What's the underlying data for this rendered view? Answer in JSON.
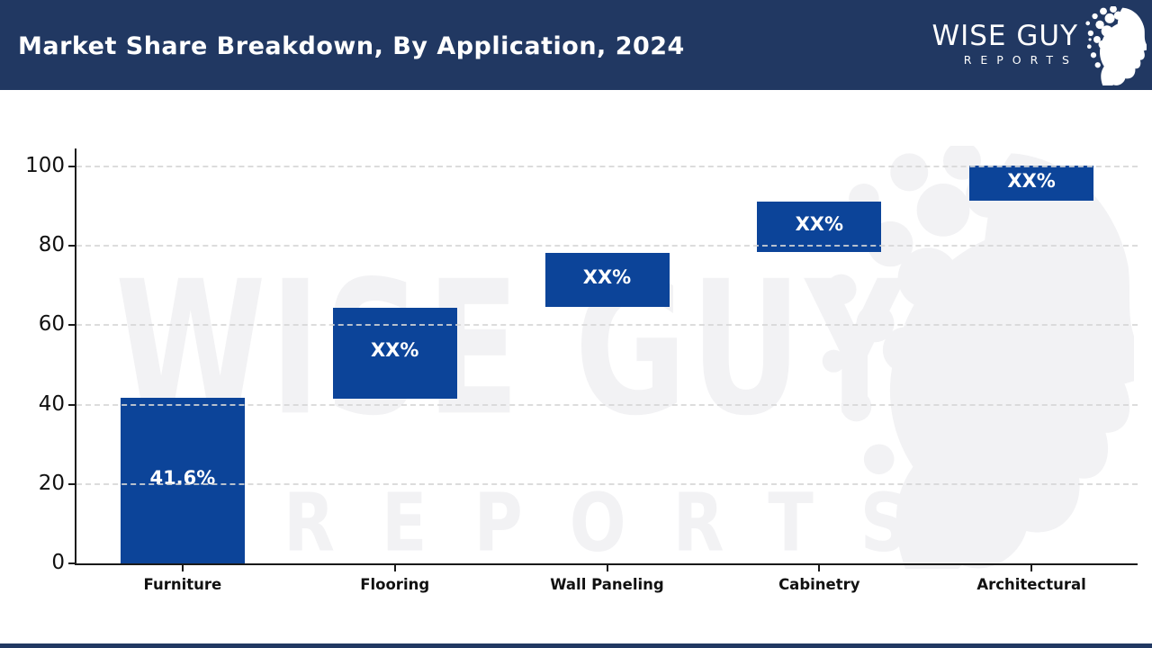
{
  "header": {
    "title": "Market Share Breakdown, By Application, 2024",
    "logo": {
      "line1": "WISE GUY",
      "line2": "REPORTS"
    }
  },
  "watermark": {
    "line1": "WISE GUY",
    "line2": "REPORTS"
  },
  "colors": {
    "header_bg": "#213862",
    "bar": "#0c4499",
    "gridline": "#d6d6d6",
    "axis": "#1a1a1a",
    "watermark": "#f2f2f4"
  },
  "chart_data": {
    "type": "bar",
    "subtype": "waterfall",
    "title": "Market Share Breakdown, By Application, 2024",
    "categories": [
      "Furniture",
      "Flooring",
      "Wall Paneling",
      "Cabinetry",
      "Architectural"
    ],
    "bars": [
      {
        "category": "Furniture",
        "start": 0,
        "end": 41.6,
        "label": "41.6%"
      },
      {
        "category": "Flooring",
        "start": 41.5,
        "end": 64.4,
        "label": "XX%"
      },
      {
        "category": "Wall Paneling",
        "start": 64.6,
        "end": 78.2,
        "label": "XX%"
      },
      {
        "category": "Cabinetry",
        "start": 78.4,
        "end": 91.2,
        "label": "XX%"
      },
      {
        "category": "Architectural",
        "start": 91.4,
        "end": 100.1,
        "label": "XX%"
      }
    ],
    "yticks": [
      0,
      20,
      40,
      60,
      80,
      100
    ],
    "ylim": [
      0,
      104.5
    ],
    "xlabel": "",
    "ylabel": "",
    "grid": "horizontal-dashed-over-bars",
    "legend": "none",
    "bar_color": "#0c4499",
    "value_label_color": "#ffffff"
  }
}
